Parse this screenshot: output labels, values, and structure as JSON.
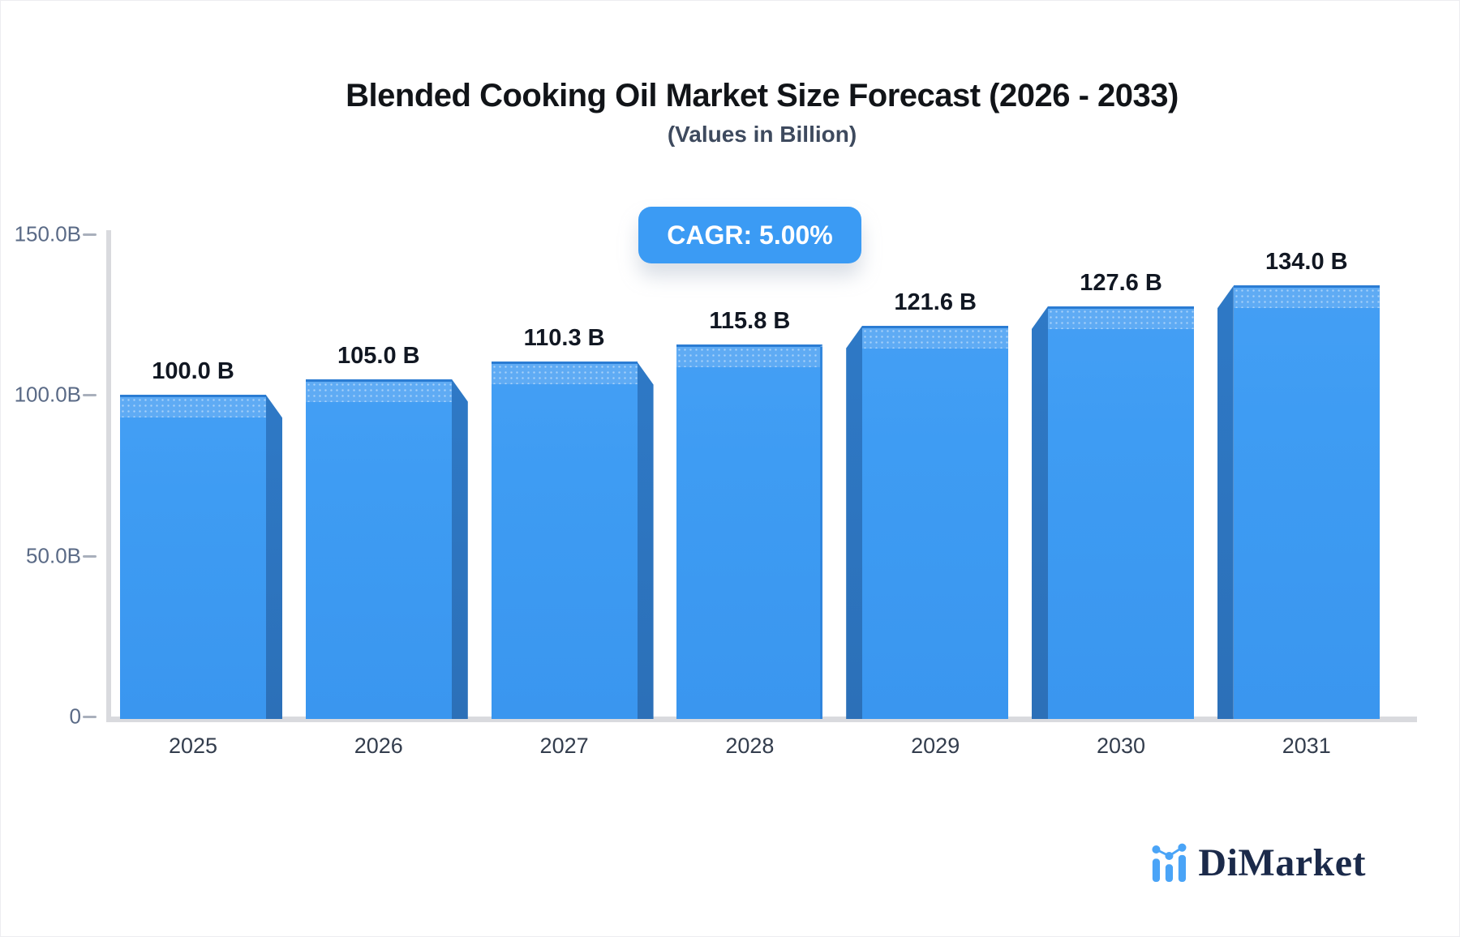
{
  "title": "Blended Cooking Oil Market Size Forecast (2026 - 2033)",
  "subtitle": "(Values in Billion)",
  "badge": {
    "label": "CAGR: 5.00%",
    "bg_color": "#3b9bf4",
    "text_color": "#ffffff"
  },
  "chart_data": {
    "type": "bar",
    "categories": [
      "2025",
      "2026",
      "2027",
      "2028",
      "2029",
      "2030",
      "2031"
    ],
    "values": [
      100.0,
      105.0,
      110.3,
      115.8,
      121.6,
      127.6,
      134.0
    ],
    "value_labels": [
      "100.0 B",
      "105.0 B",
      "110.3 B",
      "115.8 B",
      "121.6 B",
      "127.6 B",
      "134.0 B"
    ],
    "y_ticks": [
      {
        "label": "150.0B",
        "value": 150
      },
      {
        "label": "100.0B",
        "value": 100
      },
      {
        "label": "50.0B",
        "value": 50
      },
      {
        "label": "0",
        "value": 0
      }
    ],
    "ylim": [
      0,
      150
    ],
    "xlabel": "",
    "ylabel": "",
    "grid": false,
    "legend": false,
    "bar_color": "#3e9cf3",
    "bar_top_stripe_color": "#5fabf4",
    "bar_top_line_color": "#2b7cd3",
    "bar_bevel_color": "#2c71b9",
    "axis_color": "#d9dade"
  },
  "logo": {
    "text": "DiMarket",
    "icon": "bar-line-chart-icon",
    "text_color": "#1b2a4a",
    "icon_color": "#4aa4f7"
  }
}
